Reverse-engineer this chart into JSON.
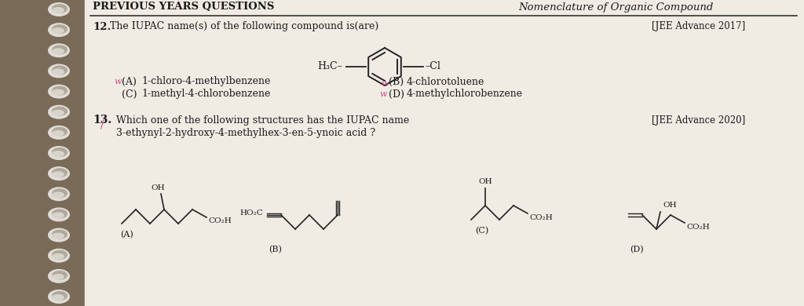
{
  "page_bg": "#f0ece4",
  "left_bg_color": "#8a7a6a",
  "spiral_color": "#d0ccc0",
  "spiral_shadow": "#a09888",
  "header_left": "PREVIOUS YEARS QUESTIONS",
  "header_right": "Nomenclature of Organic Compound",
  "q12_num": "12.",
  "q12_text": "The IUPAC name(s) of the following compound is(are)",
  "q12_ref": "[JEE Advance 2017]",
  "q12_optA": "(A) 1-chloro-4-methylbenzene",
  "q12_optB": "(B) 4-chlorotoluene",
  "q12_optC": "(C) 1-methyl-4-chlorobenzene",
  "q12_optD": "(D) 4-methylchlorobenzene",
  "q13_num": "13.",
  "q13_text1": "Which one of the following structures has the IUPAC name",
  "q13_ref": "[JEE Advance 2020]",
  "q13_text2": "3-ethynyl-2-hydroxy-4-methylhex-3-en-5-ynoic acid ?",
  "q13_optA": "(A)",
  "q13_optB": "(B)",
  "q13_optC": "(C)",
  "q13_optD": "(D)",
  "text_color": "#1a1a1a",
  "mark_color": "#cc4488"
}
